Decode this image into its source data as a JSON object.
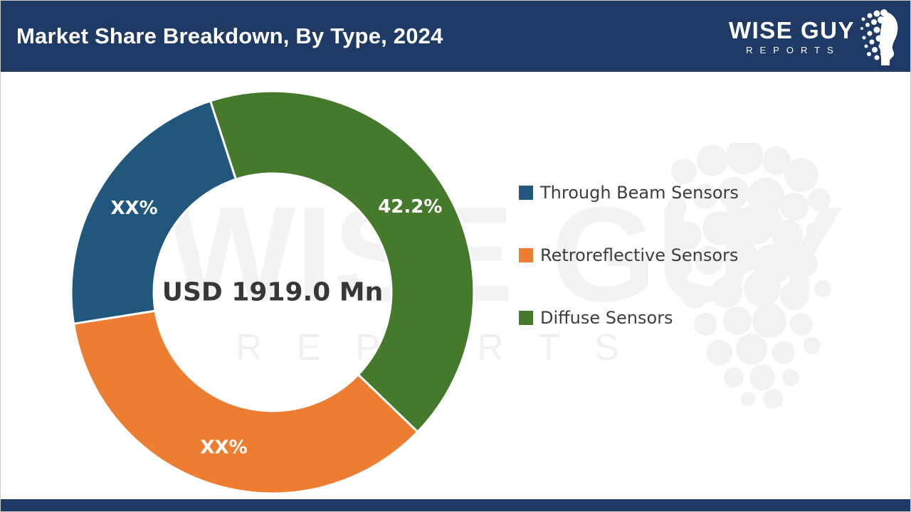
{
  "page": {
    "background": "#ffffff",
    "border_color": "#cccccc",
    "accent_navy": "#203a66"
  },
  "header": {
    "title": "Market Share Breakdown, By Type, 2024",
    "logo_line1": "WISE GUY",
    "logo_line2": "REPORTS"
  },
  "watermark": {
    "line1": "WISE GUY",
    "line2": "REPORTS"
  },
  "chart_data": {
    "type": "pie",
    "subtype": "donut",
    "title": "Market Share Breakdown, By Type, 2024",
    "center_label": "USD 1919.0 Mn",
    "start_angle_deg": -18,
    "inner_radius_ratio": 0.59,
    "legend_position": "right",
    "series": [
      {
        "name": "Through Beam Sensors",
        "label": "XX%",
        "value_pct": 22.5,
        "color": "#22577d"
      },
      {
        "name": "Retroreflective Sensors",
        "label": "XX%",
        "value_pct": 35.3,
        "color": "#ed7d31"
      },
      {
        "name": "Diffuse Sensors",
        "label": "42.2%",
        "value_pct": 42.2,
        "color": "#45792b"
      }
    ]
  }
}
